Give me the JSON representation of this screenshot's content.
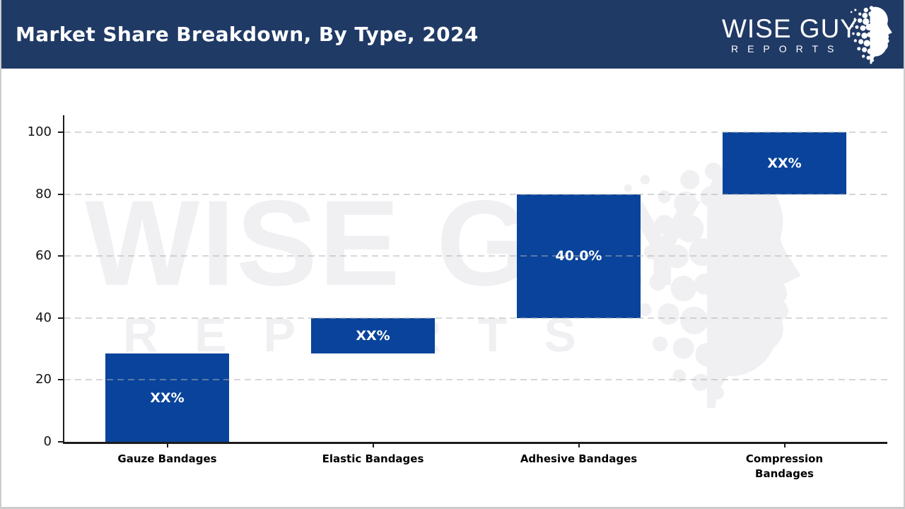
{
  "header": {
    "title": "Market Share Breakdown, By Type, 2024",
    "logo": {
      "wordmark": "WISE GUY",
      "subtext": "REPORTS"
    }
  },
  "watermark": {
    "wordmark": "WISE GUY",
    "subtext": "REPORTS"
  },
  "colors": {
    "header_bg": "#203a66",
    "header_text": "#ffffff",
    "bar": "#09439b",
    "bar_label": "#ffffff",
    "axis": "#1c1c1c",
    "tick_label": "#141414",
    "category_label": "#000000",
    "grid": "rgba(175,175,175,0.5)",
    "watermark": "#f0f0f3",
    "frame_border": "#cccccc"
  },
  "chart_data": {
    "type": "bar",
    "subtype": "waterfall",
    "title": "Market Share Breakdown, By Type, 2024",
    "categories": [
      "Gauze Bandages",
      "Elastic Bandages",
      "Adhesive Bandages",
      "Compression Bandages"
    ],
    "segments": [
      {
        "category": "Gauze Bandages",
        "start": 0,
        "end": 28.5,
        "label": "XX%"
      },
      {
        "category": "Elastic Bandages",
        "start": 28.5,
        "end": 40,
        "label": "XX%"
      },
      {
        "category": "Adhesive Bandages",
        "start": 40,
        "end": 80,
        "label": "40.0%"
      },
      {
        "category": "Compression Bandages",
        "start": 80,
        "end": 100,
        "label": "XX%"
      }
    ],
    "yticks": [
      0,
      20,
      40,
      60,
      80,
      100
    ],
    "ylim": [
      0,
      105.5
    ],
    "xlabel": "",
    "ylabel": "",
    "grid": "horizontal-dashed",
    "legend": "none",
    "bar_width_fraction": 0.6
  }
}
